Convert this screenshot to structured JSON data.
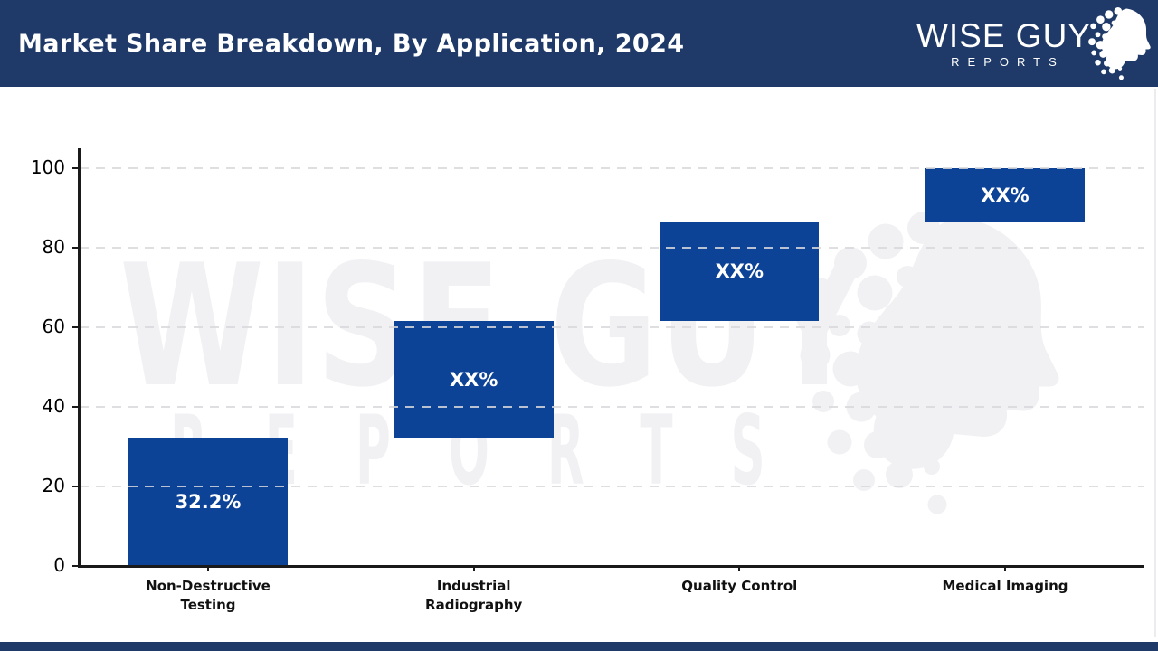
{
  "header": {
    "title": "Market Share Breakdown, By Application, 2024",
    "logo": {
      "wordmark": "WISE GUY",
      "sub": "REPORTS"
    }
  },
  "watermark": {
    "wordmark": "WISE GUY",
    "sub": "REPORTS"
  },
  "chart_data": {
    "type": "bar",
    "subtype": "waterfall",
    "title": "Market Share Breakdown, By Application, 2024",
    "categories": [
      "Non-Destructive\nTesting",
      "Industrial\nRadiography",
      "Quality Control",
      "Medical Imaging"
    ],
    "segments": [
      {
        "category": "Non-Destructive Testing",
        "start": 0,
        "end": 32.2,
        "label": "32.2%"
      },
      {
        "category": "Industrial Radiography",
        "start": 32.2,
        "end": 61.6,
        "label": "XX%"
      },
      {
        "category": "Quality Control",
        "start": 61.6,
        "end": 86.4,
        "label": "XX%"
      },
      {
        "category": "Medical Imaging",
        "start": 86.4,
        "end": 100,
        "label": "XX%"
      }
    ],
    "values": [
      32.2,
      29.4,
      24.8,
      13.6
    ],
    "unit": "%",
    "xlabel": "",
    "ylabel": "",
    "ylim": [
      0,
      100
    ],
    "yticks": [
      0,
      20,
      40,
      60,
      80,
      100
    ],
    "grid": "horizontal-dashed",
    "legend": "none"
  },
  "colors": {
    "header_bg": "#1f3a68",
    "footer_bg": "#1f3a68",
    "background": "#ffffff",
    "bar": "#0d4397",
    "bar_label": "#ffffff",
    "title_text": "#ffffff",
    "axis": "#1a1a1a",
    "tick_text": "#000000",
    "category_text": "#111111",
    "gridline": "#d9d9dc",
    "watermark": "#f1f1f4"
  }
}
